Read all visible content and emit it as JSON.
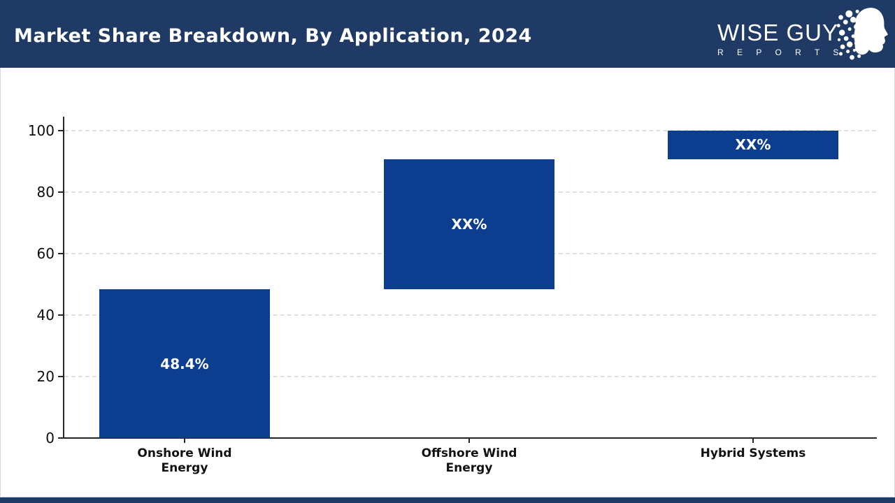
{
  "header": {
    "title": "Market Share Breakdown, By Application, 2024",
    "logo": {
      "wordmark": "WISE GUY",
      "reports": "R E P O R T S"
    }
  },
  "watermark": {
    "wordmark": "WISE GUY",
    "reports": "R E P O R T S"
  },
  "colors": {
    "header_navy": "#203a66",
    "bar_blue": "#0c3d8f",
    "gridline_gray": "#dfdfdf",
    "axis_dark": "#262626",
    "watermark_gray": "#f1f1f3"
  },
  "chart_data": {
    "type": "bar",
    "subtype": "waterfall",
    "title": "Market Share Breakdown, By Application, 2024",
    "categories": [
      "Onshore Wind\nEnergy",
      "Offshore Wind\nEnergy",
      "Hybrid Systems"
    ],
    "segments": [
      {
        "category": "Onshore Wind Energy",
        "start": 0,
        "end": 48.4,
        "label": "48.4%"
      },
      {
        "category": "Offshore Wind Energy",
        "start": 48.4,
        "end": 90.7,
        "label": "XX%"
      },
      {
        "category": "Hybrid Systems",
        "start": 90.7,
        "end": 100,
        "label": "XX%"
      }
    ],
    "xlabel": "",
    "ylabel": "",
    "yticks": [
      0,
      20,
      40,
      60,
      80,
      100
    ],
    "ylim": [
      0,
      104.5
    ],
    "grid": "horizontal-dashed",
    "legend": "none"
  }
}
